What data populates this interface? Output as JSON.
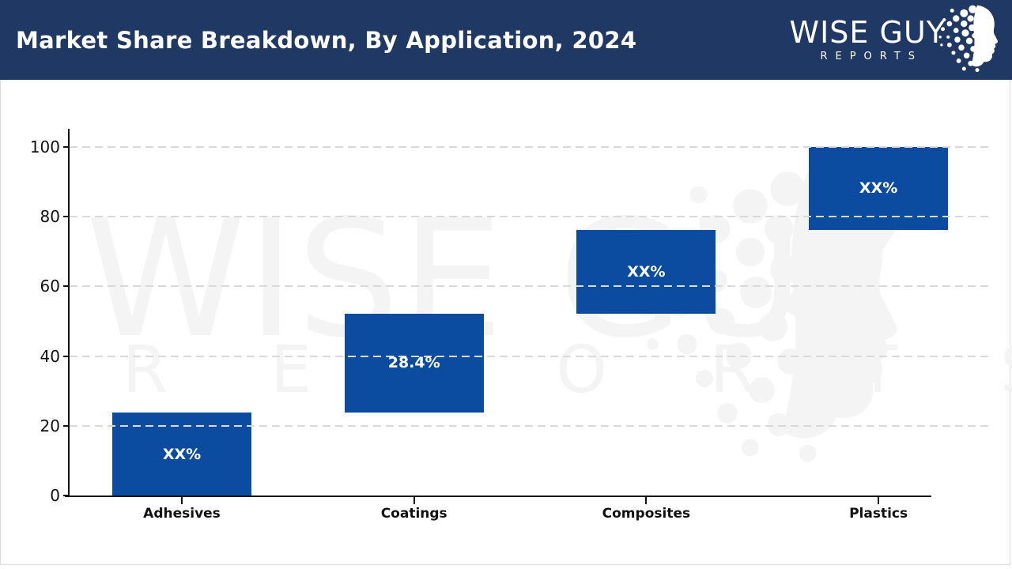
{
  "header": {
    "title": "Market Share Breakdown, By Application, 2024",
    "logo_line1": "WISE GUY",
    "logo_line2": "REPORTS"
  },
  "watermark": {
    "line1": "WISE GUY",
    "line2": "R E P O R T S"
  },
  "colors": {
    "header_bg": "#1F3864",
    "bar": "#0B4BA0",
    "grid": "#D9D9D9",
    "axis": "#111111",
    "bar_label_text": "#FFFFFF",
    "watermark": "#F4F4F4"
  },
  "chart_data": {
    "type": "bar",
    "subtype": "floating-waterfall",
    "title": "Market Share Breakdown, By Application, 2024",
    "xlabel": "",
    "ylabel": "",
    "categories": [
      "Adhesives",
      "Coatings",
      "Composites",
      "Plastics"
    ],
    "bars": [
      {
        "category": "Adhesives",
        "start": 0,
        "end": 23.8,
        "label": "XX%"
      },
      {
        "category": "Coatings",
        "start": 23.8,
        "end": 52.2,
        "label": "28.4%"
      },
      {
        "category": "Composites",
        "start": 52.2,
        "end": 76.2,
        "label": "XX%"
      },
      {
        "category": "Plastics",
        "start": 76.2,
        "end": 100,
        "label": "XX%"
      }
    ],
    "yticks": [
      0,
      20,
      40,
      60,
      80,
      100
    ],
    "ylim": [
      0,
      105
    ],
    "grid": "horizontal-dashed",
    "grid_above_bars": true,
    "legend": null
  }
}
